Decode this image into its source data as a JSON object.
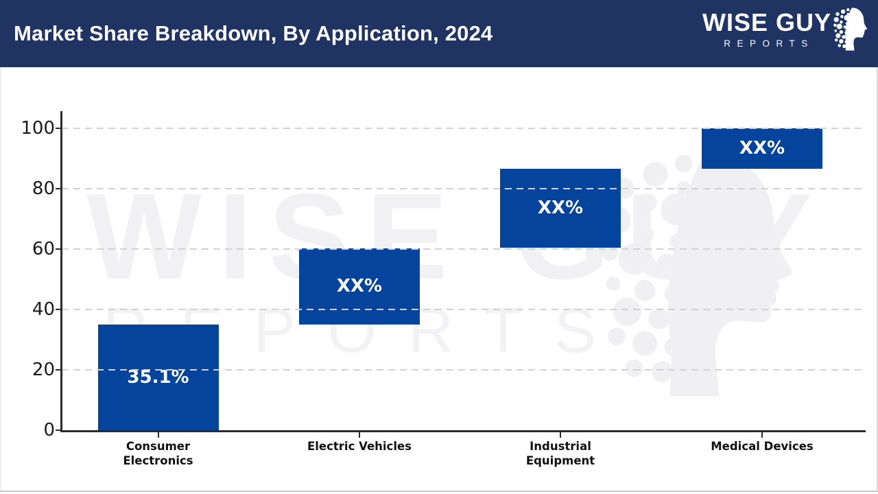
{
  "header": {
    "title": "Market Share Breakdown, By Application, 2024",
    "bg_color": "#1f3462",
    "logo": {
      "line1": "WISE GUY",
      "line2": "REPORTS",
      "icon": "head-profile-dots"
    }
  },
  "watermark": {
    "line1": "WISE GUY",
    "line2": "REPORTS"
  },
  "chart_data": {
    "type": "bar",
    "subtype": "waterfall",
    "title": "Market Share Breakdown, By Application, 2024",
    "ylim": [
      0,
      100
    ],
    "y_ticks": [
      0,
      20,
      40,
      60,
      80,
      100
    ],
    "grid": "horizontal-dashed",
    "legend": "none",
    "bar_color": "#04449c",
    "bar_label_color": "#ffffff",
    "bars": [
      {
        "category": "Consumer Electronics",
        "category_lines": [
          "Consumer",
          "Electronics"
        ],
        "start": 0,
        "end": 35.1,
        "label": "35.1%"
      },
      {
        "category": "Electric Vehicles",
        "category_lines": [
          "Electric Vehicles"
        ],
        "start": 35.1,
        "end": 60.2,
        "label": "XX%"
      },
      {
        "category": "Industrial Equipment",
        "category_lines": [
          "Industrial",
          "Equipment"
        ],
        "start": 60.5,
        "end": 86.6,
        "label": "XX%"
      },
      {
        "category": "Medical Devices",
        "category_lines": [
          "Medical Devices"
        ],
        "start": 86.6,
        "end": 100,
        "label": "XX%"
      }
    ]
  }
}
